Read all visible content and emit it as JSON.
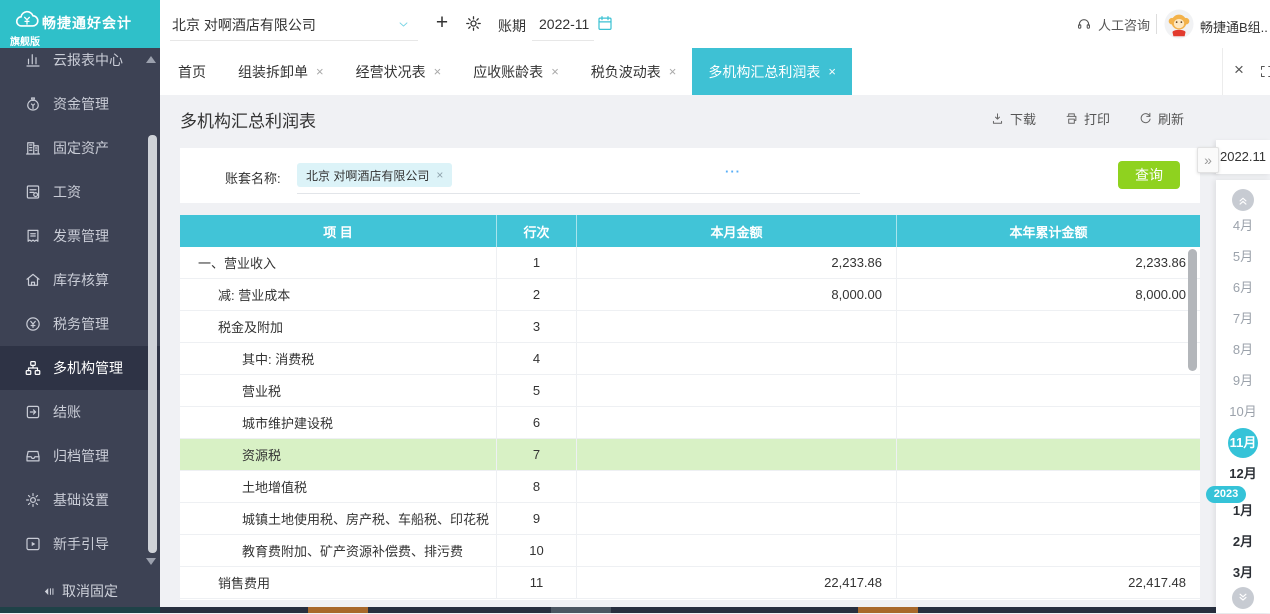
{
  "brand": {
    "app_name": "畅捷通好会计",
    "edition": "旗舰版"
  },
  "topbar": {
    "company": "北京 对啊酒店有限公司",
    "period_label": "账期",
    "period_value": "2022-11",
    "support_label": "人工咨询",
    "user_name": "畅捷通B组..."
  },
  "tabs": [
    {
      "label": "首页",
      "closable": false,
      "active": false
    },
    {
      "label": "组装拆卸单",
      "closable": true,
      "active": false
    },
    {
      "label": "经营状况表",
      "closable": true,
      "active": false
    },
    {
      "label": "应收账龄表",
      "closable": true,
      "active": false
    },
    {
      "label": "税负波动表",
      "closable": true,
      "active": false
    },
    {
      "label": "多机构汇总利润表",
      "closable": true,
      "active": true
    }
  ],
  "sidebar": {
    "items": [
      {
        "label": "云报表中心",
        "icon": "chart-icon",
        "selected": false
      },
      {
        "label": "资金管理",
        "icon": "moneybag-icon",
        "selected": false
      },
      {
        "label": "固定资产",
        "icon": "building-icon",
        "selected": false
      },
      {
        "label": "工资",
        "icon": "payroll-icon",
        "selected": false
      },
      {
        "label": "发票管理",
        "icon": "invoice-icon",
        "selected": false
      },
      {
        "label": "库存核算",
        "icon": "inventory-icon",
        "selected": false
      },
      {
        "label": "税务管理",
        "icon": "tax-icon",
        "selected": false
      },
      {
        "label": "多机构管理",
        "icon": "org-icon",
        "selected": true
      },
      {
        "label": "结账",
        "icon": "closing-icon",
        "selected": false
      },
      {
        "label": "归档管理",
        "icon": "archive-icon",
        "selected": false
      },
      {
        "label": "基础设置",
        "icon": "gear-icon",
        "selected": false
      },
      {
        "label": "新手引导",
        "icon": "guide-icon",
        "selected": false
      }
    ],
    "unpin_label": "取消固定"
  },
  "page": {
    "title": "多机构汇总利润表",
    "actions": [
      {
        "label": "下载",
        "icon": "download-icon"
      },
      {
        "label": "打印",
        "icon": "print-icon"
      },
      {
        "label": "刷新",
        "icon": "refresh-icon"
      }
    ]
  },
  "filter": {
    "label": "账套名称:",
    "tag": "北京 对啊酒店有限公司",
    "more": "···",
    "search_label": "查询"
  },
  "table": {
    "columns": [
      "项 目",
      "行次",
      "本月金额",
      "本年累计金额"
    ],
    "rows": [
      {
        "item": "一、营业收入",
        "indent": 0,
        "line": "1",
        "month": "2,233.86",
        "ytd": "2,233.86",
        "highlight": false
      },
      {
        "item": "减: 营业成本",
        "indent": 1,
        "line": "2",
        "month": "8,000.00",
        "ytd": "8,000.00",
        "highlight": false
      },
      {
        "item": "税金及附加",
        "indent": 1,
        "line": "3",
        "month": "",
        "ytd": "",
        "highlight": false
      },
      {
        "item": "其中: 消费税",
        "indent": 2,
        "line": "4",
        "month": "",
        "ytd": "",
        "highlight": false
      },
      {
        "item": "营业税",
        "indent": 2,
        "line": "5",
        "month": "",
        "ytd": "",
        "highlight": false
      },
      {
        "item": "城市维护建设税",
        "indent": 2,
        "line": "6",
        "month": "",
        "ytd": "",
        "highlight": false
      },
      {
        "item": "资源税",
        "indent": 2,
        "line": "7",
        "month": "",
        "ytd": "",
        "highlight": true
      },
      {
        "item": "土地增值税",
        "indent": 2,
        "line": "8",
        "month": "",
        "ytd": "",
        "highlight": false
      },
      {
        "item": "城镇土地使用税、房产税、车船税、印花税",
        "indent": 2,
        "line": "9",
        "month": "",
        "ytd": "",
        "highlight": false
      },
      {
        "item": "教育费附加、矿产资源补偿费、排污费",
        "indent": 2,
        "line": "10",
        "month": "",
        "ytd": "",
        "highlight": false
      },
      {
        "item": "销售费用",
        "indent": 1,
        "line": "11",
        "month": "22,417.48",
        "ytd": "22,417.48",
        "highlight": false
      }
    ]
  },
  "month_rail": {
    "current": "2022.11",
    "collapse": "»",
    "year_badge": "2023",
    "months": [
      {
        "label": "4月",
        "state": "past"
      },
      {
        "label": "5月",
        "state": "past"
      },
      {
        "label": "6月",
        "state": "past"
      },
      {
        "label": "7月",
        "state": "past"
      },
      {
        "label": "8月",
        "state": "past"
      },
      {
        "label": "9月",
        "state": "past"
      },
      {
        "label": "10月",
        "state": "past"
      },
      {
        "label": "11月",
        "state": "selected"
      },
      {
        "label": "12月",
        "state": "normal"
      },
      {
        "label": "1月",
        "state": "normal"
      },
      {
        "label": "2月",
        "state": "normal"
      },
      {
        "label": "3月",
        "state": "normal"
      }
    ]
  },
  "colors": {
    "brand_teal": "#2fc0c9",
    "accent_cyan": "#3ec1d4",
    "table_header_cyan": "#41c4d7",
    "highlight_green": "#d8f1c5",
    "button_green": "#8fd21f",
    "sidebar_bg": "#3d4254",
    "link_blue": "#57aef7"
  }
}
